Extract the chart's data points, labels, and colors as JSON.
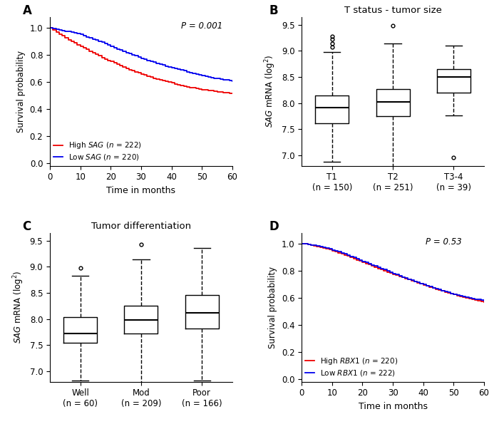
{
  "panel_A": {
    "xlabel": "Time in months",
    "ylabel": "Survival probability",
    "pvalue": "P = 0.001",
    "xlim": [
      0,
      60
    ],
    "ylim": [
      -0.02,
      1.08
    ],
    "yticks": [
      0.0,
      0.2,
      0.4,
      0.6,
      0.8,
      1.0
    ],
    "xticks": [
      0,
      10,
      20,
      30,
      40,
      50,
      60
    ],
    "high_color": "#EE0000",
    "low_color": "#0000EE",
    "high_SAG_x": [
      0,
      1,
      2,
      3,
      4,
      5,
      6,
      7,
      8,
      9,
      10,
      11,
      12,
      13,
      14,
      15,
      16,
      17,
      18,
      19,
      20,
      21,
      22,
      23,
      24,
      25,
      26,
      27,
      28,
      29,
      30,
      31,
      32,
      33,
      34,
      35,
      36,
      37,
      38,
      39,
      40,
      41,
      42,
      43,
      44,
      45,
      46,
      47,
      48,
      49,
      50,
      51,
      52,
      53,
      54,
      55,
      56,
      57,
      58,
      59,
      60
    ],
    "high_SAG_y": [
      1.0,
      0.982,
      0.968,
      0.955,
      0.943,
      0.928,
      0.912,
      0.9,
      0.888,
      0.876,
      0.864,
      0.852,
      0.84,
      0.828,
      0.816,
      0.804,
      0.792,
      0.78,
      0.77,
      0.76,
      0.75,
      0.74,
      0.73,
      0.72,
      0.71,
      0.7,
      0.69,
      0.682,
      0.674,
      0.666,
      0.658,
      0.65,
      0.642,
      0.634,
      0.628,
      0.622,
      0.616,
      0.61,
      0.604,
      0.598,
      0.592,
      0.586,
      0.58,
      0.574,
      0.569,
      0.564,
      0.56,
      0.556,
      0.552,
      0.548,
      0.544,
      0.54,
      0.537,
      0.534,
      0.531,
      0.528,
      0.525,
      0.522,
      0.52,
      0.518,
      0.516
    ],
    "low_SAG_x": [
      0,
      1,
      2,
      3,
      4,
      5,
      6,
      7,
      8,
      9,
      10,
      11,
      12,
      13,
      14,
      15,
      16,
      17,
      18,
      19,
      20,
      21,
      22,
      23,
      24,
      25,
      26,
      27,
      28,
      29,
      30,
      31,
      32,
      33,
      34,
      35,
      36,
      37,
      38,
      39,
      40,
      41,
      42,
      43,
      44,
      45,
      46,
      47,
      48,
      49,
      50,
      51,
      52,
      53,
      54,
      55,
      56,
      57,
      58,
      59,
      60
    ],
    "low_SAG_y": [
      1.0,
      0.996,
      0.991,
      0.986,
      0.981,
      0.976,
      0.971,
      0.966,
      0.961,
      0.956,
      0.95,
      0.942,
      0.934,
      0.926,
      0.918,
      0.91,
      0.902,
      0.893,
      0.883,
      0.873,
      0.863,
      0.853,
      0.844,
      0.835,
      0.826,
      0.817,
      0.808,
      0.8,
      0.792,
      0.784,
      0.776,
      0.768,
      0.76,
      0.752,
      0.745,
      0.738,
      0.731,
      0.724,
      0.718,
      0.712,
      0.706,
      0.7,
      0.694,
      0.688,
      0.682,
      0.676,
      0.67,
      0.664,
      0.659,
      0.654,
      0.648,
      0.642,
      0.637,
      0.632,
      0.628,
      0.624,
      0.62,
      0.617,
      0.614,
      0.61,
      0.607
    ]
  },
  "panel_B": {
    "title": "T status - tumor size",
    "ylabel": "SAG mRNA (log²)",
    "ylim": [
      6.8,
      9.65
    ],
    "yticks": [
      7.0,
      7.5,
      8.0,
      8.5,
      9.0,
      9.5
    ],
    "categories": [
      "T1",
      "T2",
      "T3-4"
    ],
    "n_labels": [
      "(n = 150)",
      "(n = 251)",
      "(n = 39)"
    ],
    "boxes": [
      {
        "whislo": 6.88,
        "q1": 7.62,
        "med": 7.92,
        "q3": 8.14,
        "whishi": 8.98,
        "fliers": [
          9.08,
          9.14,
          9.22,
          9.28
        ]
      },
      {
        "whislo": 6.62,
        "q1": 7.75,
        "med": 8.02,
        "q3": 8.27,
        "whishi": 9.14,
        "fliers": [
          9.48
        ]
      },
      {
        "whislo": 7.76,
        "q1": 8.2,
        "med": 8.5,
        "q3": 8.65,
        "whishi": 9.1,
        "fliers": [
          6.96
        ]
      }
    ]
  },
  "panel_C": {
    "title": "Tumor differentiation",
    "ylabel": "SAG mRNA (log²)",
    "ylim": [
      6.8,
      9.65
    ],
    "yticks": [
      7.0,
      7.5,
      8.0,
      8.5,
      9.0,
      9.5
    ],
    "categories": [
      "Well",
      "Mod",
      "Poor"
    ],
    "n_labels": [
      "(n = 60)",
      "(n = 209)",
      "(n = 166)"
    ],
    "boxes": [
      {
        "whislo": 6.82,
        "q1": 7.54,
        "med": 7.72,
        "q3": 8.04,
        "whishi": 8.82,
        "fliers": [
          8.98
        ]
      },
      {
        "whislo": 6.64,
        "q1": 7.72,
        "med": 7.98,
        "q3": 8.26,
        "whishi": 9.14,
        "fliers": [
          9.42
        ]
      },
      {
        "whislo": 6.82,
        "q1": 7.82,
        "med": 8.12,
        "q3": 8.46,
        "whishi": 9.36,
        "fliers": []
      }
    ]
  },
  "panel_D": {
    "xlabel": "Time in months",
    "ylabel": "Survival probability",
    "pvalue": "P = 0.53",
    "xlim": [
      0,
      60
    ],
    "ylim": [
      -0.02,
      1.08
    ],
    "yticks": [
      0.0,
      0.2,
      0.4,
      0.6,
      0.8,
      1.0
    ],
    "xticks": [
      0,
      10,
      20,
      30,
      40,
      50,
      60
    ],
    "high_color": "#EE0000",
    "low_color": "#0000EE",
    "high_RBX1_x": [
      0,
      1,
      2,
      3,
      4,
      5,
      6,
      7,
      8,
      9,
      10,
      11,
      12,
      13,
      14,
      15,
      16,
      17,
      18,
      19,
      20,
      21,
      22,
      23,
      24,
      25,
      26,
      27,
      28,
      29,
      30,
      31,
      32,
      33,
      34,
      35,
      36,
      37,
      38,
      39,
      40,
      41,
      42,
      43,
      44,
      45,
      46,
      47,
      48,
      49,
      50,
      51,
      52,
      53,
      54,
      55,
      56,
      57,
      58,
      59,
      60
    ],
    "high_RBX1_y": [
      1.0,
      0.997,
      0.993,
      0.989,
      0.984,
      0.979,
      0.974,
      0.968,
      0.962,
      0.955,
      0.947,
      0.939,
      0.931,
      0.923,
      0.915,
      0.907,
      0.898,
      0.889,
      0.88,
      0.871,
      0.862,
      0.853,
      0.844,
      0.835,
      0.826,
      0.817,
      0.808,
      0.799,
      0.79,
      0.782,
      0.774,
      0.766,
      0.758,
      0.75,
      0.742,
      0.734,
      0.726,
      0.718,
      0.71,
      0.702,
      0.694,
      0.686,
      0.678,
      0.671,
      0.664,
      0.657,
      0.65,
      0.643,
      0.636,
      0.63,
      0.623,
      0.617,
      0.611,
      0.604,
      0.598,
      0.592,
      0.586,
      0.581,
      0.576,
      0.571,
      0.566
    ],
    "low_RBX1_x": [
      0,
      1,
      2,
      3,
      4,
      5,
      6,
      7,
      8,
      9,
      10,
      11,
      12,
      13,
      14,
      15,
      16,
      17,
      18,
      19,
      20,
      21,
      22,
      23,
      24,
      25,
      26,
      27,
      28,
      29,
      30,
      31,
      32,
      33,
      34,
      35,
      36,
      37,
      38,
      39,
      40,
      41,
      42,
      43,
      44,
      45,
      46,
      47,
      48,
      49,
      50,
      51,
      52,
      53,
      54,
      55,
      56,
      57,
      58,
      59,
      60
    ],
    "low_RBX1_y": [
      1.0,
      0.997,
      0.994,
      0.99,
      0.986,
      0.982,
      0.977,
      0.972,
      0.967,
      0.961,
      0.954,
      0.947,
      0.939,
      0.931,
      0.923,
      0.914,
      0.906,
      0.897,
      0.888,
      0.879,
      0.87,
      0.861,
      0.852,
      0.843,
      0.834,
      0.825,
      0.816,
      0.807,
      0.798,
      0.789,
      0.78,
      0.771,
      0.762,
      0.754,
      0.746,
      0.738,
      0.73,
      0.722,
      0.714,
      0.706,
      0.698,
      0.69,
      0.682,
      0.674,
      0.667,
      0.66,
      0.653,
      0.646,
      0.639,
      0.632,
      0.626,
      0.62,
      0.614,
      0.608,
      0.603,
      0.598,
      0.594,
      0.59,
      0.586,
      0.582,
      0.578
    ]
  }
}
